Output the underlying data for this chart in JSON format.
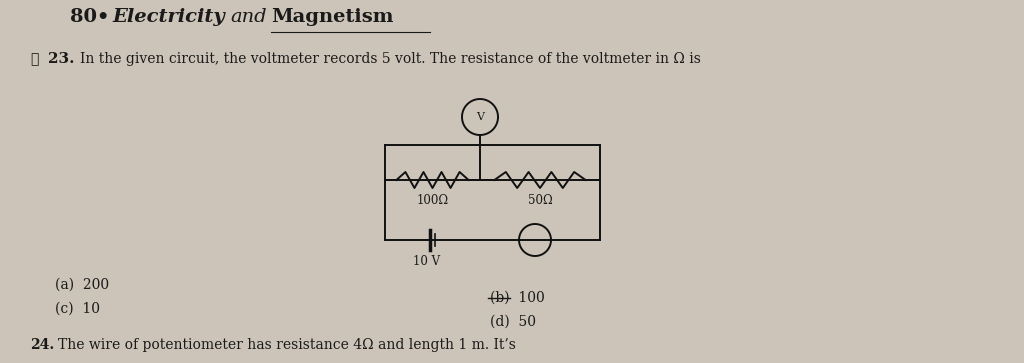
{
  "bg_color": "#ccc4b8",
  "text_color": "#1a1a1a",
  "circuit_color": "#111111",
  "title_number": "80",
  "title_bullet": "•",
  "title_electricity": "Electricity",
  "title_and": "and",
  "title_magnetism": "Magnetism",
  "q_mark": "✗",
  "q_num": "23.",
  "q_text": "In the given circuit, the voltmeter records 5 volt. The resistance of the voltmeter in Ω is",
  "r1_label": "100Ω",
  "r2_label": "50Ω",
  "battery_label": "10 V",
  "opt_a": "(a)  200",
  "opt_b": "(c)  10",
  "opt_c": "(b)  100",
  "opt_d": "(d)  50",
  "next_num": "24.",
  "next_text": "The wire of potentiometer has resistance 4Ω and length 1 m. It’s"
}
